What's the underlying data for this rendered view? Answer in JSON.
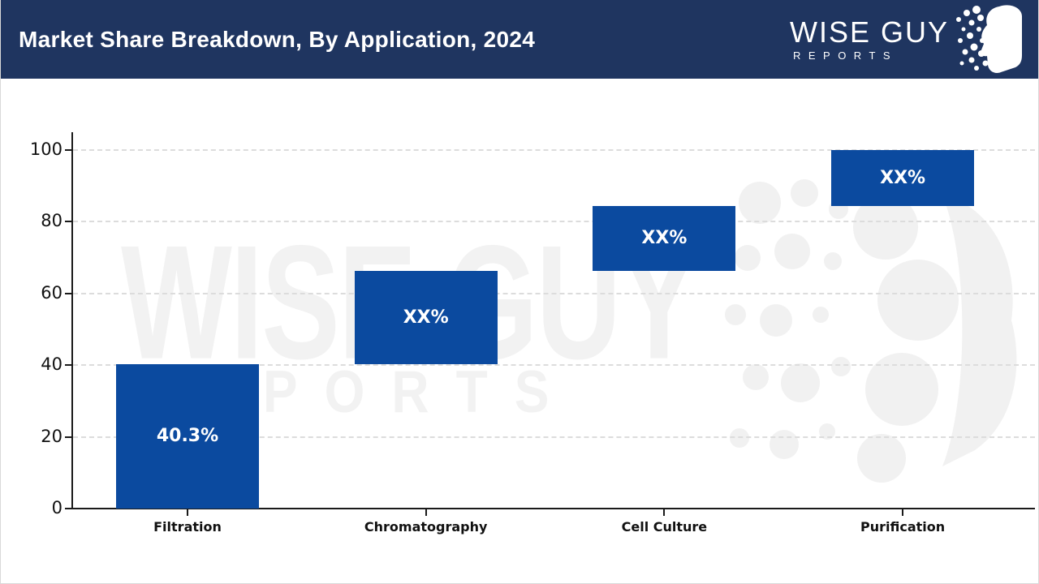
{
  "header": {
    "title": "Market Share Breakdown, By Application, 2024",
    "bg_color": "#1f3560",
    "logo": {
      "line1": "WISE GUY",
      "line2": "REPORTS"
    }
  },
  "watermark": {
    "line1": "WISE GUY",
    "line2": "REPORTS"
  },
  "chart_data": {
    "type": "bar",
    "subtype": "waterfall-breakdown",
    "title": "Market Share Breakdown, By Application, 2024",
    "categories": [
      "Filtration",
      "Chromatography",
      "Cell Culture",
      "Purification"
    ],
    "bars": [
      {
        "category": "Filtration",
        "start": 0,
        "end": 40.3,
        "label": "40.3%"
      },
      {
        "category": "Chromatography",
        "start": 40.3,
        "end": 66.4,
        "label": "XX%"
      },
      {
        "category": "Cell Culture",
        "start": 66.4,
        "end": 84.5,
        "label": "XX%"
      },
      {
        "category": "Purification",
        "start": 84.5,
        "end": 100,
        "label": "XX%"
      }
    ],
    "xlabel": "",
    "ylabel": "",
    "ylim": [
      0,
      100
    ],
    "yticks": [
      0,
      20,
      40,
      60,
      80,
      100
    ],
    "grid": "dashed-horizontal",
    "legend": "none",
    "bar_color": "#0b4a9f",
    "bar_label_color": "#ffffff",
    "axis_color": "#1a1a1a"
  }
}
